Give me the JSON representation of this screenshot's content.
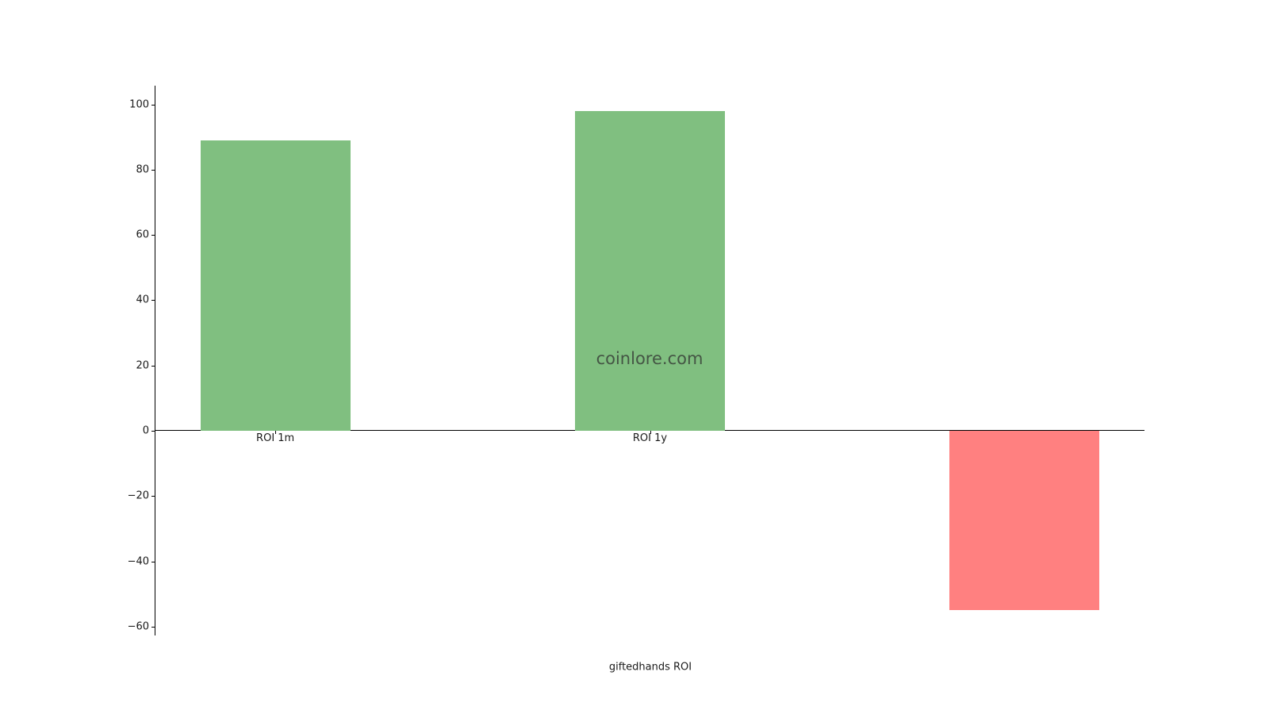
{
  "page": {
    "background_color": "#ffffff"
  },
  "chart_data": {
    "type": "bar",
    "title": "",
    "xlabel": "giftedhands ROI",
    "ylabel": "",
    "watermark": "coinlore.com",
    "categories": [
      "ROI 1m",
      "ROI 1y",
      ""
    ],
    "values": [
      89,
      98,
      -55
    ],
    "series": [
      {
        "name": "giftedhands ROI",
        "values": [
          89,
          98,
          -55
        ]
      }
    ],
    "bar_colors": [
      "#80bf80",
      "#80bf80",
      "#ff8080"
    ],
    "positive_color": "#80bf80",
    "negative_color": "#ff8080",
    "yticks": [
      -60,
      -40,
      -20,
      0,
      20,
      40,
      60,
      80,
      100
    ],
    "ytick_labels": [
      "−60",
      "−40",
      "−20",
      "0",
      "20",
      "40",
      "60",
      "80",
      "100"
    ],
    "ylim": [
      -62.65,
      105.65
    ],
    "xlim": [
      -0.32,
      2.32
    ],
    "bar_width": 0.4,
    "grid": false,
    "legend_position": "none",
    "axis_color": "#000000",
    "tick_text_color": "#1a1a1a",
    "baseline_at_zero": true
  }
}
